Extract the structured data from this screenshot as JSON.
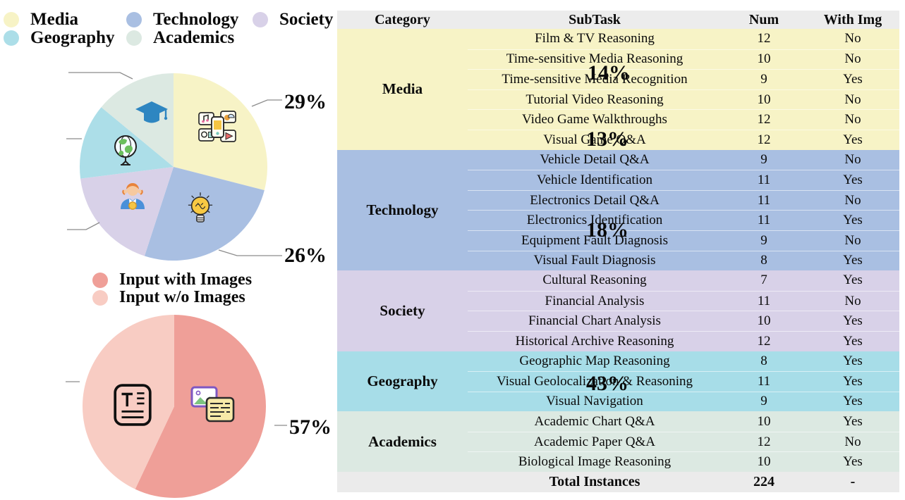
{
  "chart_data": [
    {
      "type": "pie",
      "name": "category-distribution",
      "labels": [
        "Media",
        "Technology",
        "Society",
        "Geography",
        "Academics"
      ],
      "values": [
        29,
        26,
        18,
        13,
        14
      ],
      "unit": "%",
      "colors": [
        "#F7F3C6",
        "#A9BFE2",
        "#D8D1E8",
        "#ACDEE8",
        "#DCE9E2"
      ],
      "start_angle_deg": 0,
      "direction": "clockwise",
      "legend_position": "top-left",
      "slice_icons": [
        "media-collage-icon",
        "lightbulb-icon",
        "person-medal-icon",
        "globe-icon",
        "graduation-cap-icon"
      ]
    },
    {
      "type": "pie",
      "name": "input-modality-distribution",
      "labels": [
        "Input with Images",
        "Input w/o Images"
      ],
      "values": [
        57,
        43
      ],
      "unit": "%",
      "colors": [
        "#EF9F98",
        "#F8CCC3"
      ],
      "start_angle_deg": 0,
      "direction": "clockwise",
      "legend_position": "above",
      "slice_icons": [
        "image-note-icon",
        "text-document-icon"
      ]
    },
    {
      "type": "table",
      "columns": [
        "Category",
        "SubTask",
        "Num",
        "With Img"
      ],
      "header_color": "#ECECEC",
      "total_color": "#EBEBEB",
      "groups": [
        {
          "category": "Media",
          "row_color": "#F7F3C6",
          "rows": [
            {
              "subtask": "Film & TV Reasoning",
              "num": "12",
              "with_img": "No"
            },
            {
              "subtask": "Time-sensitive Media Reasoning",
              "num": "10",
              "with_img": "No"
            },
            {
              "subtask": "Time-sensitive Media Recognition",
              "num": "9",
              "with_img": "Yes"
            },
            {
              "subtask": "Tutorial Video Reasoning",
              "num": "10",
              "with_img": "No"
            },
            {
              "subtask": "Video Game Walkthroughs",
              "num": "12",
              "with_img": "No"
            },
            {
              "subtask": "Visual Game Q&A",
              "num": "12",
              "with_img": "Yes"
            }
          ]
        },
        {
          "category": "Technology",
          "row_color": "#A9BFE2",
          "rows": [
            {
              "subtask": "Vehicle Detail Q&A",
              "num": "9",
              "with_img": "No"
            },
            {
              "subtask": "Vehicle Identification",
              "num": "11",
              "with_img": "Yes"
            },
            {
              "subtask": "Electronics Detail Q&A",
              "num": "11",
              "with_img": "No"
            },
            {
              "subtask": "Electronics Identification",
              "num": "11",
              "with_img": "Yes"
            },
            {
              "subtask": "Equipment Fault Diagnosis",
              "num": "9",
              "with_img": "No"
            },
            {
              "subtask": "Visual Fault Diagnosis",
              "num": "8",
              "with_img": "Yes"
            }
          ]
        },
        {
          "category": "Society",
          "row_color": "#D8D1E8",
          "rows": [
            {
              "subtask": "Cultural Reasoning",
              "num": "7",
              "with_img": "Yes"
            },
            {
              "subtask": "Financial Analysis",
              "num": "11",
              "with_img": "No"
            },
            {
              "subtask": "Financial Chart Analysis",
              "num": "10",
              "with_img": "Yes"
            },
            {
              "subtask": "Historical Archive Reasoning",
              "num": "12",
              "with_img": "Yes"
            }
          ]
        },
        {
          "category": "Geography",
          "row_color": "#A7DDE8",
          "rows": [
            {
              "subtask": "Geographic Map Reasoning",
              "num": "8",
              "with_img": "Yes"
            },
            {
              "subtask": "Visual Geolocalization & Reasoning",
              "num": "11",
              "with_img": "Yes"
            },
            {
              "subtask": "Visual Navigation",
              "num": "9",
              "with_img": "Yes"
            }
          ]
        },
        {
          "category": "Academics",
          "row_color": "#DCE9E2",
          "rows": [
            {
              "subtask": "Academic Chart Q&A",
              "num": "10",
              "with_img": "Yes"
            },
            {
              "subtask": "Academic Paper Q&A",
              "num": "12",
              "with_img": "No"
            },
            {
              "subtask": "Biological Image Reasoning",
              "num": "10",
              "with_img": "Yes"
            }
          ]
        }
      ],
      "total_row": {
        "label": "Total Instances",
        "num": "224",
        "with_img": "-"
      }
    }
  ]
}
